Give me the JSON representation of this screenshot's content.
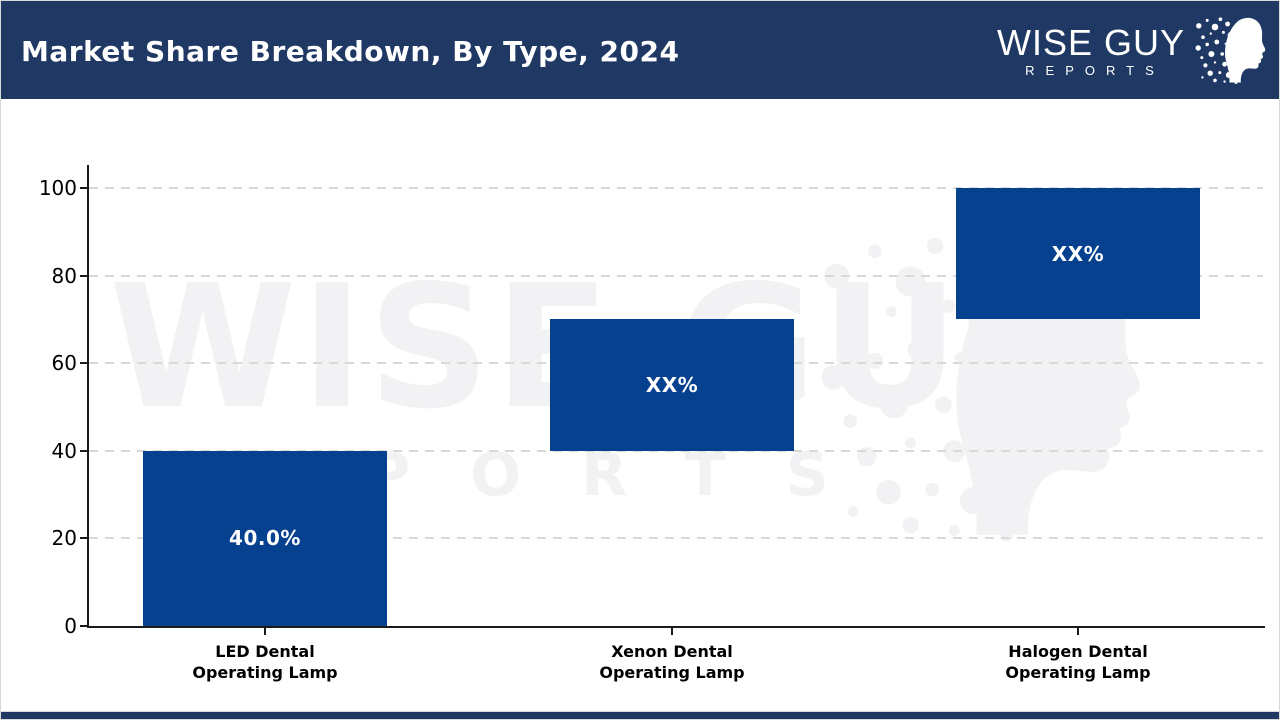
{
  "header": {
    "title": "Market Share Breakdown, By Type, 2024",
    "logo": {
      "name": "WISE GUY",
      "sub": "REPORTS"
    }
  },
  "watermark": {
    "name": "WISE GUY",
    "sub": "REPORTS"
  },
  "colors": {
    "header_bg": "#1f3864",
    "footer_bar": "#1f3864",
    "bar": "#05418f",
    "grid": "#d9d9d9",
    "axis": "#1a1a1a",
    "watermark": "#f2f2f4",
    "bar_label_text": "#ffffff",
    "title_text": "#ffffff"
  },
  "chart_data": {
    "type": "bar",
    "subtype": "floating-segment-bars",
    "title": "Market Share Breakdown, By Type, 2024",
    "categories": [
      [
        "LED Dental",
        "Operating Lamp"
      ],
      [
        "Xenon Dental",
        "Operating Lamp"
      ],
      [
        "Halogen Dental",
        "Operating Lamp"
      ]
    ],
    "bars": [
      {
        "category": "LED Dental Operating Lamp",
        "start": 0,
        "end": 40,
        "label": "40.0%"
      },
      {
        "category": "Xenon Dental Operating Lamp",
        "start": 40,
        "end": 70,
        "label": "XX%"
      },
      {
        "category": "Halogen Dental Operating Lamp",
        "start": 70,
        "end": 100,
        "label": "XX%"
      }
    ],
    "ylim": [
      0,
      100
    ],
    "yticks": [
      0,
      20,
      40,
      60,
      80,
      100
    ],
    "xlabel": "",
    "ylabel": "",
    "bar_color": "#05418f",
    "grid": "horizontal-dashed",
    "legend": null
  }
}
